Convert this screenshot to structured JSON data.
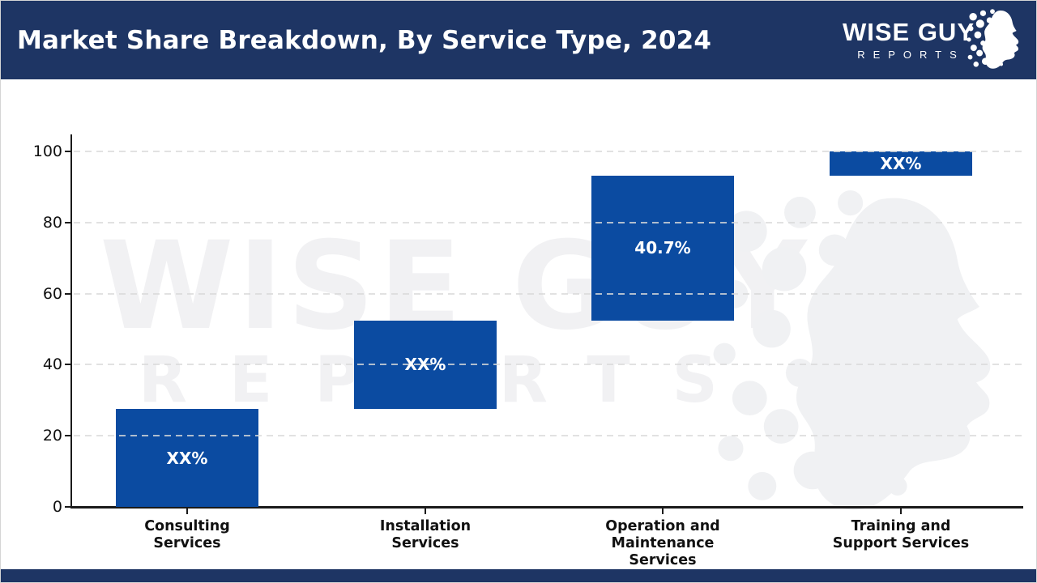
{
  "header": {
    "title": "Market Share Breakdown, By Service Type, 2024",
    "bg_color": "#1E3564",
    "logo": {
      "brand": "WISE GUY",
      "sub": "REPORTS"
    }
  },
  "watermark": {
    "brand": "WISE GUY",
    "sub": "REPORTS",
    "color": "#F1F1F3"
  },
  "footer": {
    "bg_color": "#1E3564"
  },
  "chart_data": {
    "type": "bar",
    "subtype": "floating-waterfall",
    "title": "Market Share Breakdown, By Service Type, 2024",
    "categories": [
      "Consulting\nServices",
      "Installation\nServices",
      "Operation and\nMaintenance\nServices",
      "Training and\nSupport Services"
    ],
    "values": [
      27.5,
      25.0,
      40.7,
      6.8
    ],
    "segments": [
      {
        "start": 0,
        "end": 27.5
      },
      {
        "start": 27.5,
        "end": 52.5
      },
      {
        "start": 52.5,
        "end": 93.2
      },
      {
        "start": 93.2,
        "end": 100
      }
    ],
    "bar_labels": [
      "XX%",
      "XX%",
      "40.7%",
      "XX%"
    ],
    "xlabel": "",
    "ylabel": "",
    "ylim": [
      0,
      100
    ],
    "yticks": [
      0,
      20,
      40,
      60,
      80,
      100
    ],
    "grid": "horizontal-dashed",
    "legend": "none",
    "bar_color": "#0B4BA1",
    "bar_label_color": "#ffffff"
  }
}
